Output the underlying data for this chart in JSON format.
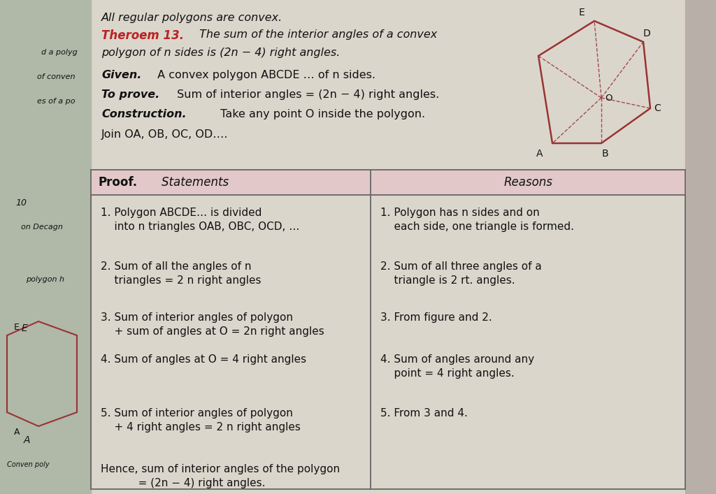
{
  "page_bg": "#cdc8be",
  "content_bg": "#dbd6cc",
  "left_strip_color": "#b0b8a8",
  "header_bg": "#e2c8c8",
  "table_line_color": "#666666",
  "text_color": "#111111",
  "red_color": "#bb2222",
  "dark_red": "#993333",
  "title_line": "All regular polygons are convex.",
  "theorem_label": "Theroem 13.",
  "theorem_rest": " The sum of the interior angles of a convex",
  "theorem_line2": "polygon of n sides is (2n − 4) right angles.",
  "given_label": "Given.",
  "given_rest": " A convex polygon ABCDE … of n sides.",
  "prove_label": "To prove.",
  "prove_rest": " Sum of interior angles = (2n − 4) right angles.",
  "construction_label": "Construction.",
  "construction_rest": " Take any point O inside the polygon.",
  "join_line": "Join OA, OB, OC, OD….",
  "stmt1a": "1. Polygon ABCDE… is divided",
  "stmt1b": "    into n triangles OAB, OBC, OCD, …",
  "stmt2a": "2. Sum of all the angles of n",
  "stmt2b": "    triangles = 2 n right angles",
  "stmt3a": "3. Sum of interior angles of polygon",
  "stmt3b": "    + sum of angles at O = 2n right angles",
  "stmt4": "4. Sum of angles at O = 4 right angles",
  "stmt5a": "5. Sum of interior angles of polygon",
  "stmt5b": "    + 4 right angles = 2 n right angles",
  "stmt6a": "Hence, sum of interior angles of the polygon",
  "stmt6b": "           = (2n − 4) right angles.",
  "rsn1a": "1. Polygon has n sides and on",
  "rsn1b": "    each side, one triangle is formed.",
  "rsn2a": "2. Sum of all three angles of a",
  "rsn2b": "    triangle is 2 rt. angles.",
  "rsn3": "3. From figure and 2.",
  "rsn4a": "4. Sum of angles around any",
  "rsn4b": "    point = 4 right angles.",
  "rsn5": "5. From 3 and 4.",
  "header_stmt": "Proof.",
  "header_stmt2": "    Statements",
  "header_rsn": "Reasons"
}
